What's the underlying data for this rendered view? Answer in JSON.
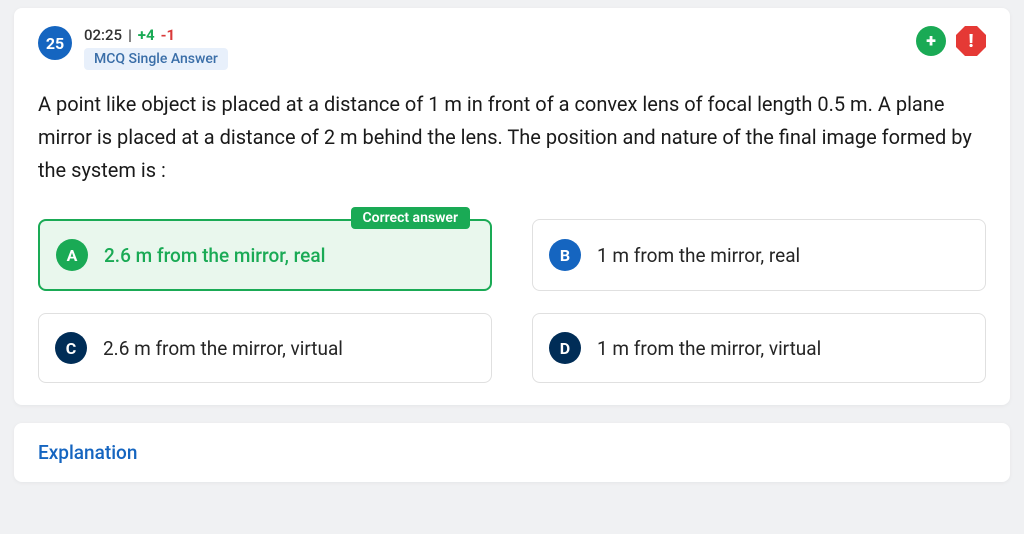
{
  "question": {
    "number": "25",
    "time": "02:25",
    "separator": "|",
    "positive_marks": "+4",
    "negative_marks": "-1",
    "type_tag": "MCQ Single Answer",
    "text": "A point like object is placed at a distance of 1 m in front of a convex lens of focal length 0.5 m. A plane mirror is placed at a distance of 2 m behind the lens. The position and nature of the final image formed by the system is :"
  },
  "actions": {
    "add_icon": "+",
    "report_icon": "!"
  },
  "correct_badge": "Correct answer",
  "options": {
    "a": {
      "letter": "A",
      "text": "2.6 m from the mirror, real"
    },
    "b": {
      "letter": "B",
      "text": "1 m from the mirror, real"
    },
    "c": {
      "letter": "C",
      "text": "2.6 m from the mirror, virtual"
    },
    "d": {
      "letter": "D",
      "text": "1 m from the mirror, virtual"
    }
  },
  "explanation": {
    "title": "Explanation"
  },
  "colors": {
    "primary_blue": "#1565c0",
    "dark_blue": "#002d57",
    "green": "#1aaa55",
    "red": "#e53935",
    "bg": "#f0f1f3",
    "correct_bg": "#e9f7ed",
    "tag_bg": "#e8f0fb",
    "tag_text": "#3a6ea8"
  }
}
